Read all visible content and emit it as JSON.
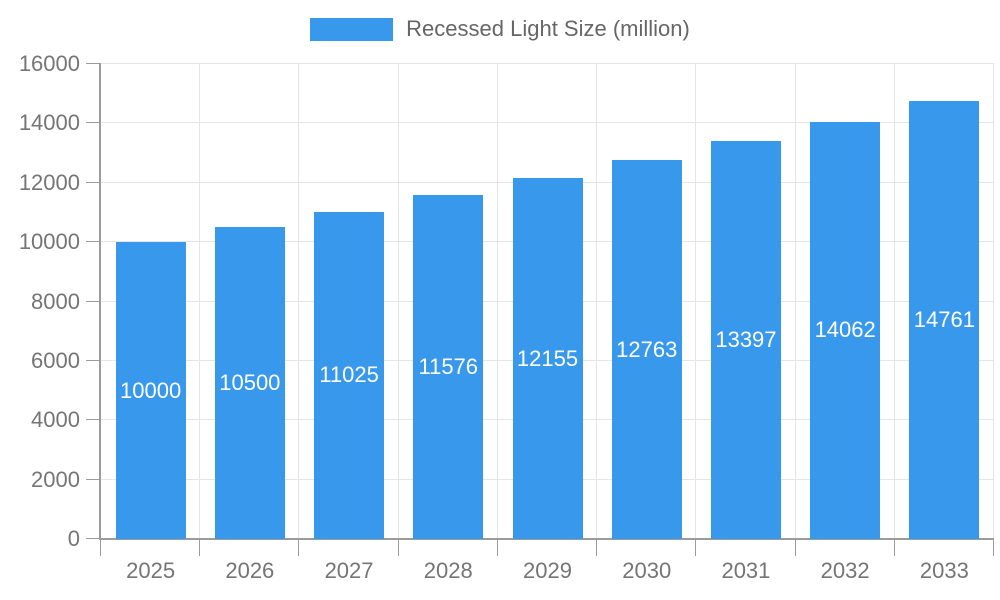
{
  "chart_data": {
    "type": "bar",
    "title": "Recessed Light Size (million)",
    "categories": [
      "2025",
      "2026",
      "2027",
      "2028",
      "2029",
      "2030",
      "2031",
      "2032",
      "2033"
    ],
    "series": [
      {
        "name": "Recessed Light Size (million)",
        "values": [
          10000,
          10500,
          11025,
          11576,
          12155,
          12763,
          13397,
          14062,
          14761
        ],
        "color": "#3898EC"
      }
    ],
    "value_labels": {
      "show": true,
      "position": "inside-center",
      "color": "#FFFFFF"
    },
    "xlabel": "",
    "ylabel": "",
    "ylim": [
      0,
      16000
    ],
    "ytick_step": 2000,
    "yticks": [
      0,
      2000,
      4000,
      6000,
      8000,
      10000,
      12000,
      14000,
      16000
    ],
    "grid": {
      "horizontal": true,
      "vertical": true
    },
    "legend_position": "top"
  },
  "legend": {
    "label": "Recessed Light Size (million)"
  },
  "colors": {
    "bar": "#3898EC",
    "background": "#FFFFFF",
    "grid": "#E5E5E5",
    "axis": "#9B9B9B",
    "tick_label": "#757575",
    "legend_text": "#666666",
    "value_label": "#FFFFFF"
  }
}
